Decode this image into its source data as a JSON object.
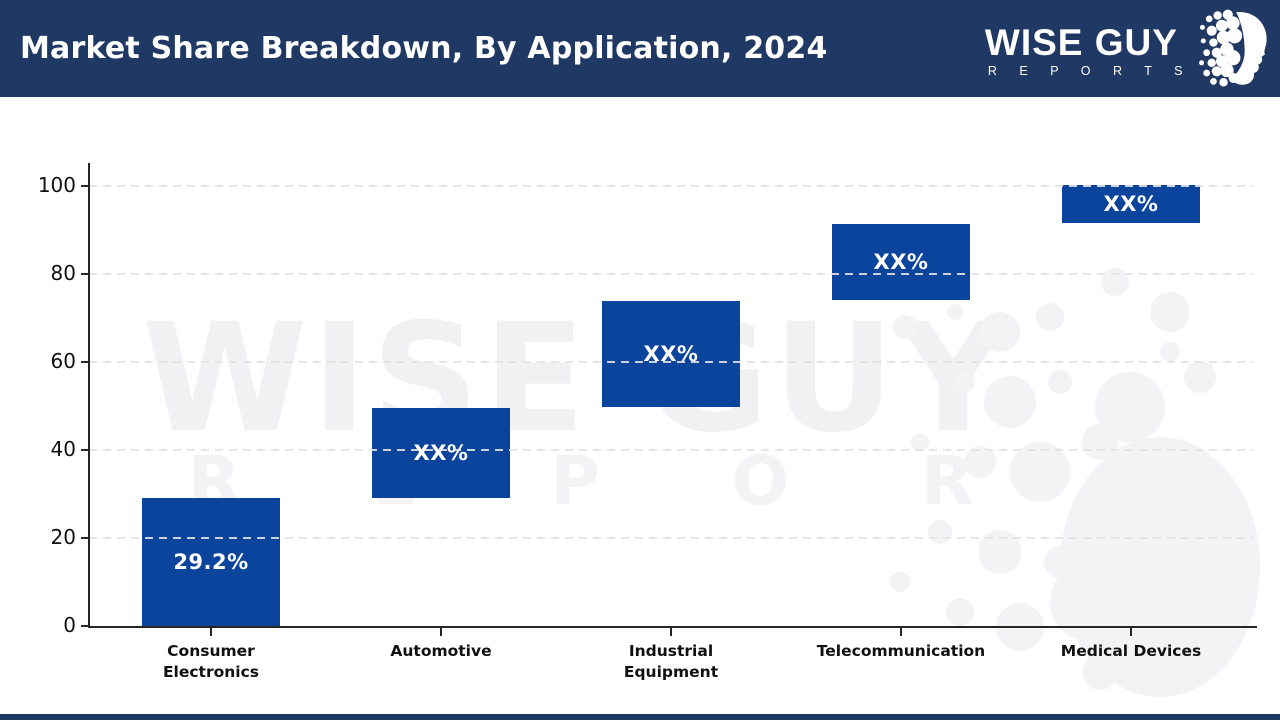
{
  "header": {
    "title": "Market Share Breakdown, By Application, 2024",
    "logo": {
      "line1": "WISE GUY",
      "line2": "R E P O R T S"
    }
  },
  "watermark": {
    "line1": "WISE GUY",
    "line2": "R E P O R T S"
  },
  "colors": {
    "header_bg": "#1f3864",
    "footer_bg": "#1f3864",
    "bar": "#0a449c",
    "bar_label": "#ffffff",
    "axis": "#262626",
    "tick_text": "#111111",
    "grid": "#e3e3e3"
  },
  "chart_data": {
    "type": "bar",
    "subtype": "waterfall-floating",
    "title": "Market Share Breakdown, By Application, 2024",
    "xlabel": "",
    "ylabel": "",
    "ylim": [
      0,
      105
    ],
    "yticks": [
      0,
      20,
      40,
      60,
      80,
      100
    ],
    "grid": "horizontal-dashed",
    "legend": "none",
    "categories": [
      "Consumer Electronics",
      "Automotive",
      "Industrial Equipment",
      "Telecommunication",
      "Medical Devices"
    ],
    "segments": [
      {
        "category": "Consumer Electronics",
        "display": "Consumer\nElectronics",
        "start": 0,
        "end": 29.2,
        "label": "29.2%"
      },
      {
        "category": "Automotive",
        "display": "Automotive",
        "start": 29.1,
        "end": 49.5,
        "label": "XX%"
      },
      {
        "category": "Industrial Equipment",
        "display": "Industrial\nEquipment",
        "start": 49.8,
        "end": 73.9,
        "label": "XX%"
      },
      {
        "category": "Telecommunication",
        "display": "Telecommunication",
        "start": 74.1,
        "end": 91.4,
        "label": "XX%"
      },
      {
        "category": "Medical Devices",
        "display": "Medical Devices",
        "start": 91.6,
        "end": 100.2,
        "label": "XX%"
      }
    ]
  }
}
